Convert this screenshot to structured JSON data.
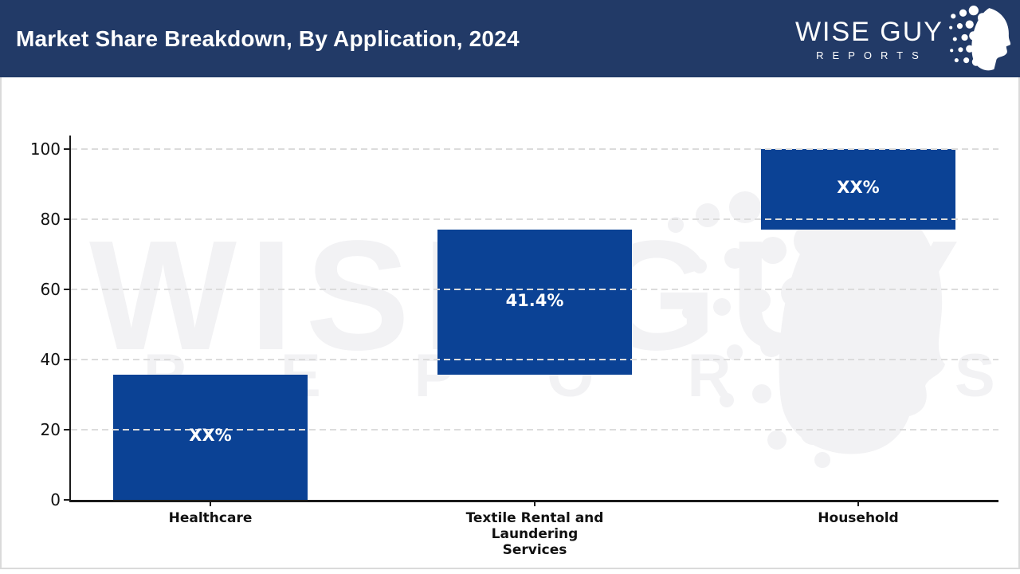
{
  "header": {
    "title": "Market Share Breakdown, By Application, 2024",
    "logo_line1": "WISE GUY",
    "logo_line2": "REPORTS"
  },
  "watermark": {
    "wordmark": "WISE GUY",
    "reports": "R E P O R T S"
  },
  "colors": {
    "header_bg": "#223a67",
    "bar": "#0b4295",
    "grid": "#dcdcdc",
    "axis": "#1a1a1a",
    "bar_label_text": "#ffffff",
    "watermark": "#f2f2f4",
    "frame_border": "#dadada"
  },
  "chart_data": {
    "type": "bar",
    "subtype": "floating-waterfall",
    "title": "Market Share Breakdown, By Application, 2024",
    "categories": [
      {
        "lines": [
          "Healthcare"
        ]
      },
      {
        "lines": [
          "Textile Rental and",
          "Laundering",
          "Services"
        ]
      },
      {
        "lines": [
          "Household"
        ]
      }
    ],
    "segments": [
      {
        "category": "Healthcare",
        "start": 0,
        "end": 35.7,
        "label": "XX%"
      },
      {
        "category": "Textile Rental and Laundering Services",
        "start": 35.7,
        "end": 77.1,
        "label": "41.4%"
      },
      {
        "category": "Household",
        "start": 77.1,
        "end": 100,
        "label": "XX%"
      }
    ],
    "ylabel": "",
    "xlabel": "",
    "ylim": [
      0,
      100
    ],
    "yticks": [
      0,
      20,
      40,
      60,
      80,
      100
    ],
    "grid": "horizontal-dashed",
    "legend": "none"
  }
}
